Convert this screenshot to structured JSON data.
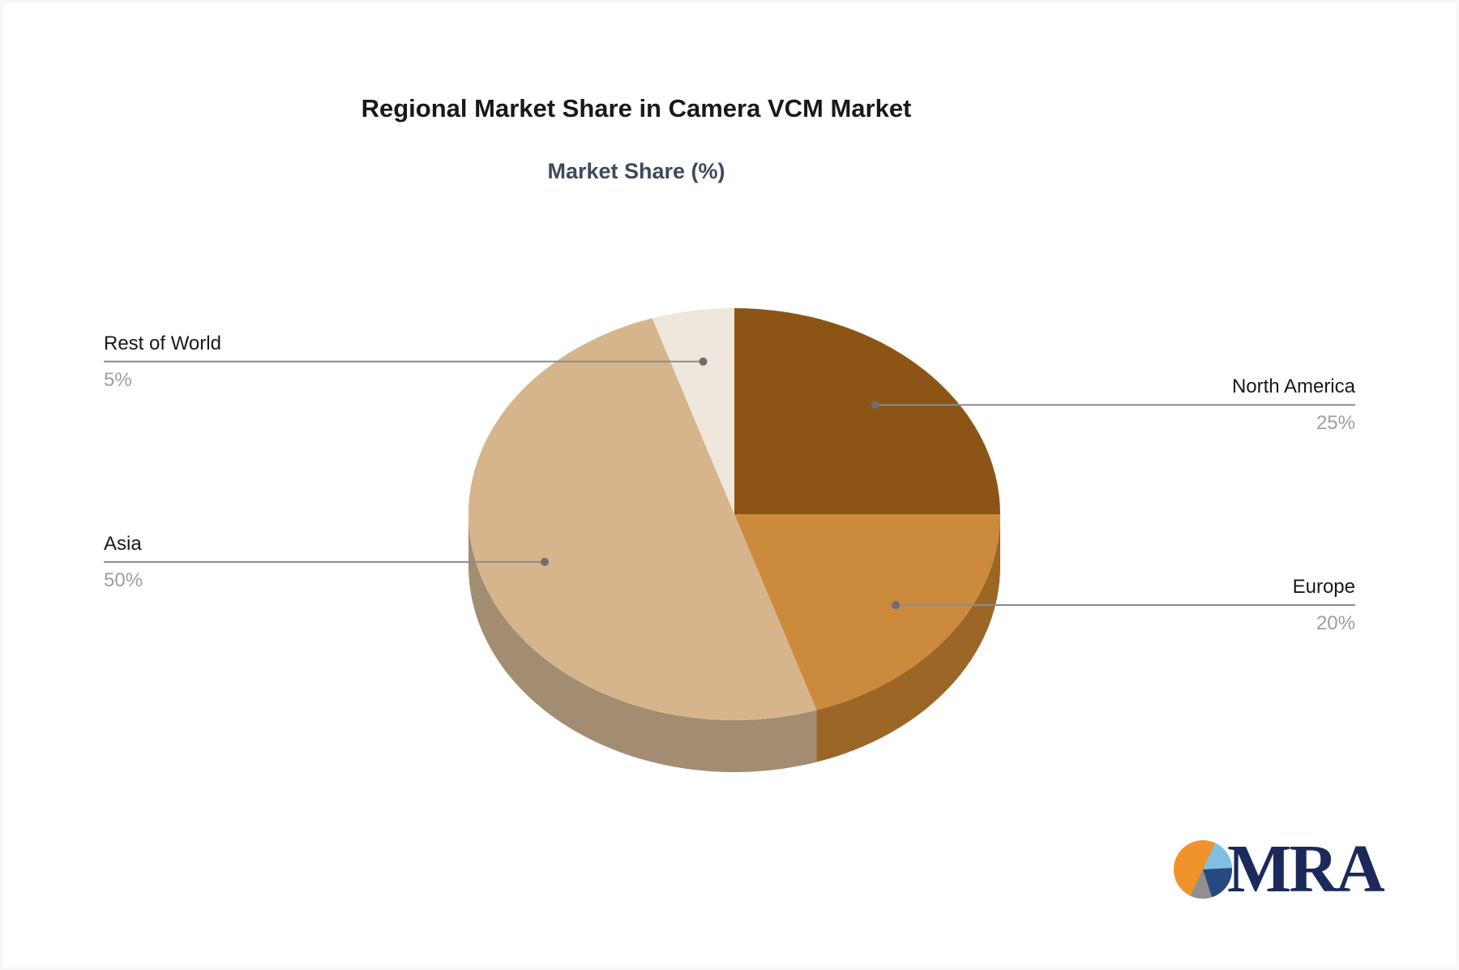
{
  "header": {
    "title": "Regional Market Share in Camera VCM Market",
    "subtitle": "Market Share (%)"
  },
  "chart_data": {
    "type": "pie",
    "style": "3d",
    "title": "Regional Market Share in Camera VCM Market",
    "subtitle": "Market Share (%)",
    "unit": "%",
    "start_angle_deg": 0,
    "direction": "clockwise",
    "labels": [
      "North America",
      "Europe",
      "Asia",
      "Rest of World"
    ],
    "values": [
      25,
      20,
      50,
      5
    ],
    "value_labels": [
      "25%",
      "20%",
      "50%",
      "5%"
    ],
    "colors": [
      "#8C5516",
      "#CC8A3D",
      "#D6B58C",
      "#EFE7DC"
    ],
    "side_colors": [
      "#6E4312",
      "#9C6626",
      "#A28D73",
      "#C2B5A8"
    ],
    "leader_line_color": "#8C8C8C",
    "leader_dot_color": "#6E6E6E",
    "label_color": "#16191D",
    "value_color": "#9E9E9E",
    "legend_position": "callout-labels"
  },
  "logo": {
    "text": "MRA",
    "text_color": "#1B2A5B",
    "icon": {
      "orange": "#F0932D",
      "light_blue": "#82BEE3",
      "dark_blue": "#27497F",
      "gray": "#909090"
    }
  }
}
